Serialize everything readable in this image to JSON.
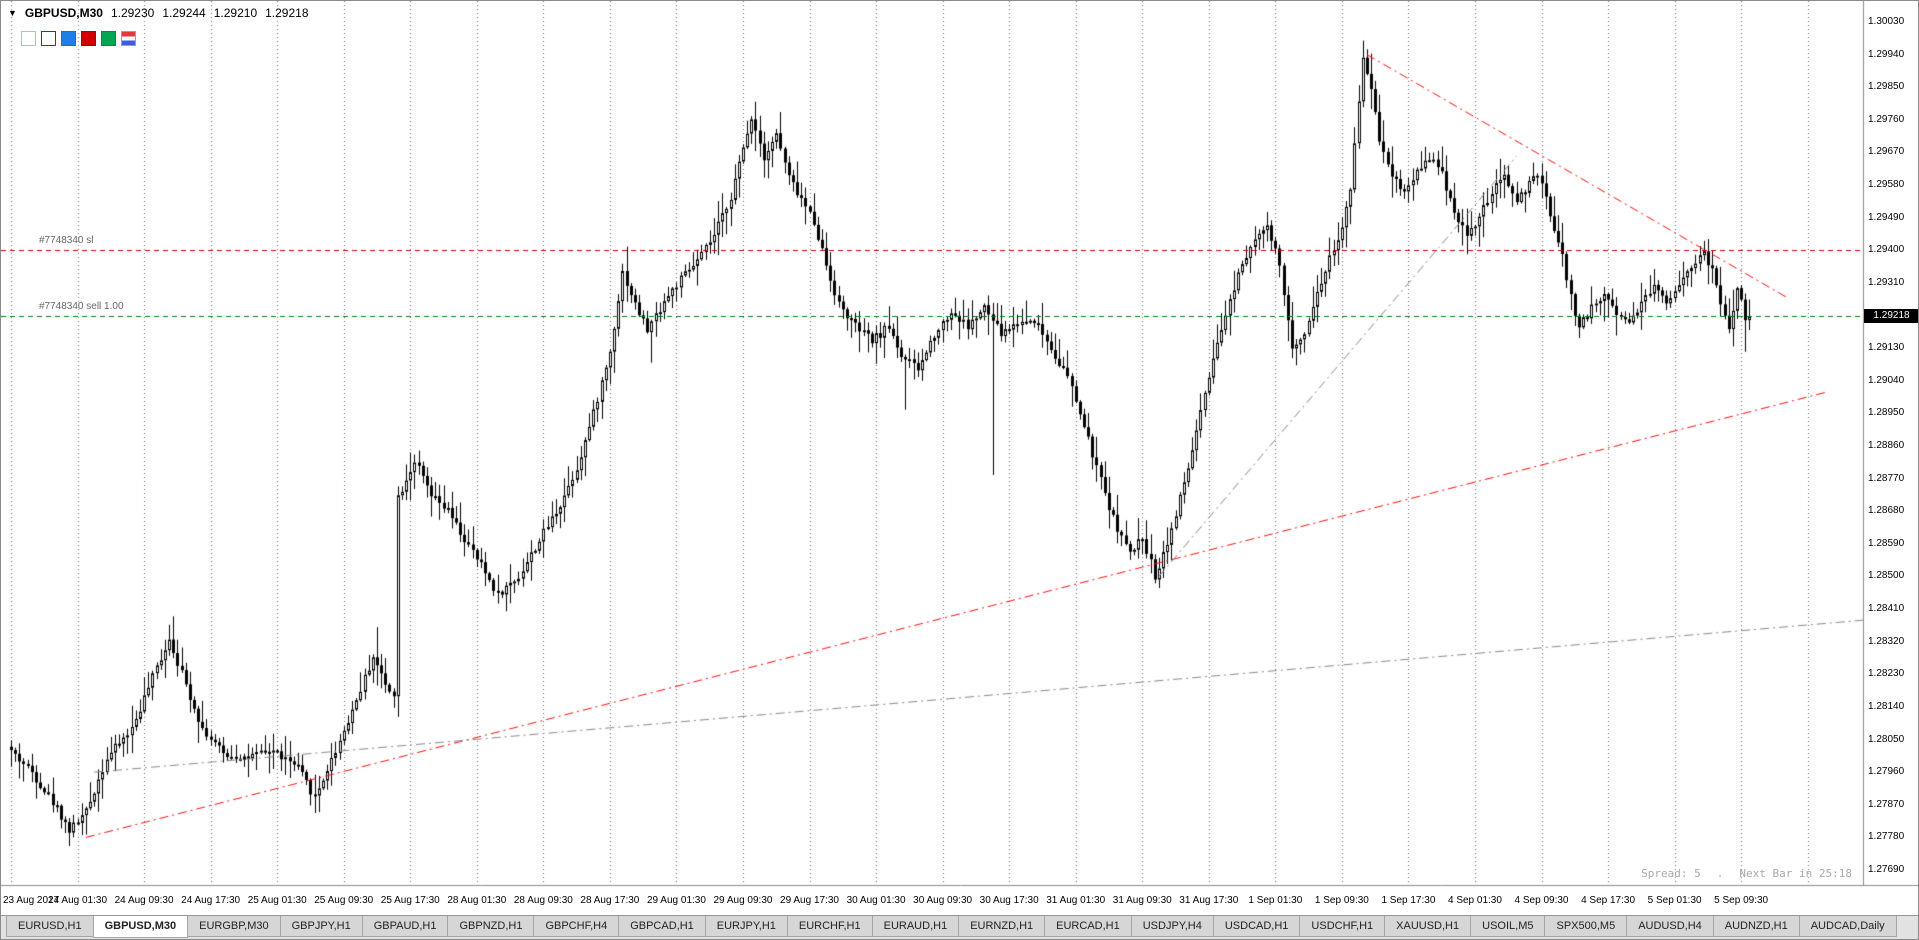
{
  "window": {
    "collapse_icon": "▼",
    "title_symbol": "GBPUSD,M30",
    "ohlc": {
      "open": "1.29230",
      "high": "1.29244",
      "low": "1.29210",
      "close": "1.29218"
    }
  },
  "toolbar": {
    "swatches": [
      {
        "name": "empty-white-swatch",
        "fill": "#ffffff",
        "border": "#a8c0d8"
      },
      {
        "name": "red-outline-swatch",
        "fill": "#ffffff",
        "border": "#d00000"
      },
      {
        "name": "blue-swatch",
        "fill": "#1f7fe8",
        "border": "#1a6fd0"
      },
      {
        "name": "red-swatch",
        "fill": "#d00000",
        "border": "#b00000"
      },
      {
        "name": "green-swatch",
        "fill": "#00a651",
        "border": "#008a43"
      },
      {
        "name": "flag-swatch",
        "fill": "stripes",
        "border": "#a0a0a0",
        "stripes": [
          "#e23a3a",
          "#ffffff",
          "#3a5fe2"
        ]
      }
    ]
  },
  "chart_data": {
    "type": "candlestick",
    "symbol": "GBPUSD",
    "timeframe": "M30",
    "current_price": "1.29218",
    "y_axis": {
      "max": 1.3003,
      "min": 1.2769,
      "tick_step": 0.0009,
      "labels": [
        "1.30030",
        "1.29940",
        "1.29850",
        "1.29760",
        "1.29670",
        "1.29580",
        "1.29490",
        "1.29400",
        "1.29310",
        "1.29130",
        "1.29040",
        "1.28950",
        "1.28860",
        "1.28770",
        "1.28680",
        "1.28590",
        "1.28500",
        "1.28410",
        "1.28320",
        "1.28230",
        "1.28140",
        "1.28050",
        "1.27960",
        "1.27870",
        "1.27780",
        "1.27690"
      ]
    },
    "x_axis": {
      "bars_per_label": 16,
      "labels": [
        "23 Aug 2017",
        "24 Aug 01:30",
        "24 Aug 09:30",
        "24 Aug 17:30",
        "25 Aug 01:30",
        "25 Aug 09:30",
        "25 Aug 17:30",
        "28 Aug 01:30",
        "28 Aug 09:30",
        "28 Aug 17:30",
        "29 Aug 01:30",
        "29 Aug 09:30",
        "29 Aug 17:30",
        "30 Aug 01:30",
        "30 Aug 09:30",
        "30 Aug 17:30",
        "31 Aug 01:30",
        "31 Aug 09:30",
        "31 Aug 17:30",
        "1 Sep 01:30",
        "1 Sep 09:30",
        "1 Sep 17:30",
        "4 Sep 01:30",
        "4 Sep 09:30",
        "4 Sep 17:30",
        "5 Sep 01:30",
        "5 Sep 09:30"
      ]
    },
    "grid": "vertical-dotted",
    "candle_colors": {
      "bull_fill": "#ffffff",
      "bear_fill": "#000000",
      "outline": "#000000",
      "wick": "#000000"
    },
    "price_path": [
      [
        0,
        1.2803
      ],
      [
        6,
        1.2796
      ],
      [
        12,
        1.2786
      ],
      [
        15,
        1.278
      ],
      [
        19,
        1.2785
      ],
      [
        24,
        1.28
      ],
      [
        30,
        1.2808
      ],
      [
        36,
        1.2825
      ],
      [
        39,
        1.2833
      ],
      [
        43,
        1.282
      ],
      [
        47,
        1.2808
      ],
      [
        52,
        1.2801
      ],
      [
        58,
        1.28
      ],
      [
        64,
        1.2802
      ],
      [
        70,
        1.2797
      ],
      [
        74,
        1.2789
      ],
      [
        79,
        1.2802
      ],
      [
        84,
        1.2816
      ],
      [
        88,
        1.2828
      ],
      [
        91,
        1.282
      ],
      [
        93,
        1.2818
      ],
      [
        94,
        1.2872
      ],
      [
        98,
        1.2882
      ],
      [
        102,
        1.2872
      ],
      [
        106,
        1.2868
      ],
      [
        110,
        1.286
      ],
      [
        114,
        1.2853
      ],
      [
        118,
        1.2845
      ],
      [
        123,
        1.285
      ],
      [
        128,
        1.286
      ],
      [
        133,
        1.287
      ],
      [
        137,
        1.288
      ],
      [
        141,
        1.2895
      ],
      [
        145,
        1.2912
      ],
      [
        148,
        1.2934
      ],
      [
        151,
        1.2925
      ],
      [
        154,
        1.2918
      ],
      [
        158,
        1.2926
      ],
      [
        162,
        1.2932
      ],
      [
        166,
        1.2937
      ],
      [
        170,
        1.2944
      ],
      [
        174,
        1.2955
      ],
      [
        177,
        1.2968
      ],
      [
        179,
        1.2977
      ],
      [
        182,
        1.2966
      ],
      [
        185,
        1.2972
      ],
      [
        188,
        1.296
      ],
      [
        191,
        1.2954
      ],
      [
        194,
        1.2948
      ],
      [
        197,
        1.2936
      ],
      [
        200,
        1.2925
      ],
      [
        204,
        1.2919
      ],
      [
        208,
        1.2915
      ],
      [
        212,
        1.2919
      ],
      [
        215,
        1.2911
      ],
      [
        219,
        1.2907
      ],
      [
        223,
        1.2917
      ],
      [
        227,
        1.2923
      ],
      [
        231,
        1.2919
      ],
      [
        235,
        1.2924
      ],
      [
        239,
        1.2917
      ],
      [
        243,
        1.292
      ],
      [
        247,
        1.2921
      ],
      [
        251,
        1.2913
      ],
      [
        255,
        1.2905
      ],
      [
        258,
        1.2895
      ],
      [
        262,
        1.288
      ],
      [
        266,
        1.2866
      ],
      [
        270,
        1.2856
      ],
      [
        273,
        1.2861
      ],
      [
        276,
        1.285
      ],
      [
        280,
        1.2863
      ],
      [
        284,
        1.288
      ],
      [
        288,
        1.29
      ],
      [
        292,
        1.2918
      ],
      [
        296,
        1.2934
      ],
      [
        300,
        1.2944
      ],
      [
        303,
        1.2946
      ],
      [
        306,
        1.2936
      ],
      [
        309,
        1.2912
      ],
      [
        312,
        1.2918
      ],
      [
        315,
        1.2928
      ],
      [
        318,
        1.2938
      ],
      [
        321,
        1.2946
      ],
      [
        323,
        1.2956
      ],
      [
        325,
        1.2982
      ],
      [
        326,
        1.2993
      ],
      [
        328,
        1.2985
      ],
      [
        330,
        1.2971
      ],
      [
        333,
        1.2961
      ],
      [
        336,
        1.2956
      ],
      [
        339,
        1.2962
      ],
      [
        342,
        1.2966
      ],
      [
        345,
        1.2961
      ],
      [
        348,
        1.2951
      ],
      [
        351,
        1.2944
      ],
      [
        354,
        1.2949
      ],
      [
        357,
        1.2956
      ],
      [
        360,
        1.296
      ],
      [
        363,
        1.2954
      ],
      [
        366,
        1.2958
      ],
      [
        368,
        1.2961
      ],
      [
        370,
        1.2954
      ],
      [
        372,
        1.2946
      ],
      [
        374,
        1.2938
      ],
      [
        376,
        1.2927
      ],
      [
        378,
        1.2919
      ],
      [
        381,
        1.2924
      ],
      [
        384,
        1.2928
      ],
      [
        387,
        1.2923
      ],
      [
        390,
        1.292
      ],
      [
        393,
        1.2926
      ],
      [
        396,
        1.293
      ],
      [
        399,
        1.2926
      ],
      [
        402,
        1.2931
      ],
      [
        405,
        1.2936
      ],
      [
        408,
        1.2939
      ],
      [
        410,
        1.2934
      ],
      [
        412,
        1.2926
      ],
      [
        414,
        1.2918
      ],
      [
        416,
        1.2929
      ],
      [
        418,
        1.29218
      ]
    ],
    "wick_events": [
      {
        "bar": 15,
        "low": 1.2778
      },
      {
        "bar": 39,
        "high": 1.2839
      },
      {
        "bar": 74,
        "low": 1.2785
      },
      {
        "bar": 88,
        "high": 1.2836
      },
      {
        "bar": 148,
        "high": 1.2941
      },
      {
        "bar": 154,
        "low": 1.2909
      },
      {
        "bar": 179,
        "high": 1.2981
      },
      {
        "bar": 215,
        "low": 1.2896
      },
      {
        "bar": 236,
        "low": 1.2878
      },
      {
        "bar": 276,
        "low": 1.2848
      },
      {
        "bar": 326,
        "high": 1.2994
      },
      {
        "bar": 417,
        "low": 1.2912
      }
    ],
    "order_lines": [
      {
        "id": "#7748340",
        "kind": "stop-loss",
        "label": "#7748340 sl",
        "price": 1.294,
        "color": "#d60000",
        "style": "dashed"
      },
      {
        "id": "#7748340",
        "kind": "sell-position",
        "label": "#7748340 sell 1.00",
        "price": 1.29218,
        "color": "#008000",
        "style": "dashed"
      }
    ],
    "trendlines": [
      {
        "name": "ascending-support-red",
        "color": "#ff1010",
        "style": "dashdot",
        "from": [
          18,
          1.2778
        ],
        "to": [
          437,
          1.2901
        ]
      },
      {
        "name": "descending-resistance-red",
        "color": "#ff1010",
        "style": "dashdot",
        "from": [
          326,
          1.2994
        ],
        "to": [
          427,
          1.2927
        ]
      },
      {
        "name": "long-term-support-gray",
        "color": "#8a8a8a",
        "style": "dashdot",
        "from": [
          20,
          1.2796
        ],
        "to": [
          446,
          1.2838
        ]
      },
      {
        "name": "steep-rally-gray",
        "color": "#8a8a8a",
        "style": "dashdot",
        "from": [
          276,
          1.285
        ],
        "to": [
          362,
          1.2966
        ]
      }
    ]
  },
  "status": {
    "spread": "Spread: 5",
    "separator": ".",
    "next_bar": "Next Bar in 25:18"
  },
  "tabs": {
    "active": "GBPUSD,M30",
    "items": [
      "EURUSD,H1",
      "GBPUSD,M30",
      "EURGBP,M30",
      "GBPJPY,H1",
      "GBPAUD,H1",
      "GBPNZD,H1",
      "GBPCHF,H4",
      "GBPCAD,H1",
      "EURJPY,H1",
      "EURCHF,H1",
      "EURAUD,H1",
      "EURNZD,H1",
      "EURCAD,H1",
      "USDJPY,H4",
      "USDCAD,H1",
      "USDCHF,H1",
      "XAUUSD,H1",
      "USOIL,M5",
      "SPX500,M5",
      "AUDUSD,H4",
      "AUDNZD,H1",
      "AUDCAD,Daily"
    ]
  }
}
